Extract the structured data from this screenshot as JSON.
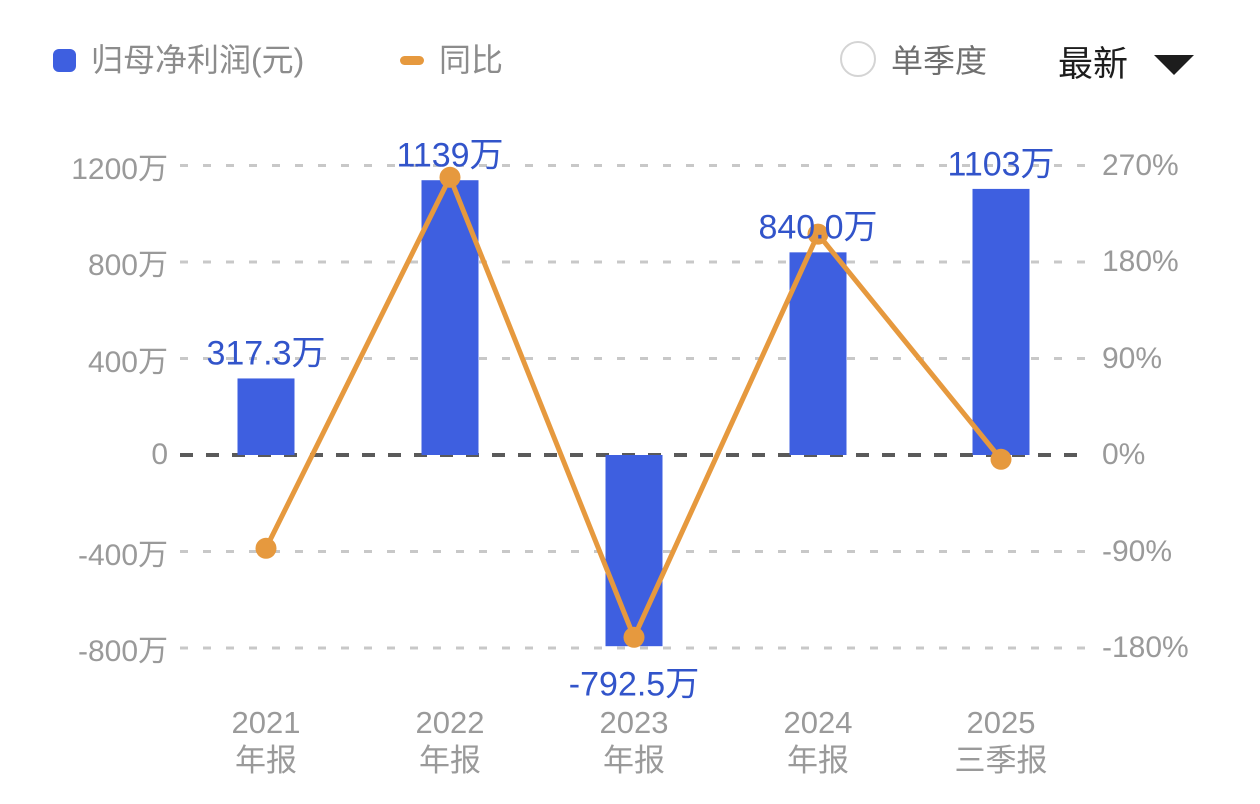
{
  "header": {
    "legend": [
      {
        "label": "归母净利润(元)",
        "marker": "square-icon",
        "color": "#3E5FE0"
      },
      {
        "label": "同比",
        "marker": "dash-icon",
        "color": "#E6993E"
      }
    ],
    "controls": {
      "radio_label": "单季度",
      "radio_checked": false,
      "selector_label": "最新",
      "dropdown_icon": "triangle-down"
    }
  },
  "chart_data": {
    "type": "bar",
    "subtype": "bar+line dual axis",
    "categories": [
      {
        "line1": "2021",
        "line2": "年报"
      },
      {
        "line1": "2022",
        "line2": "年报"
      },
      {
        "line1": "2023",
        "line2": "年报"
      },
      {
        "line1": "2024",
        "line2": "年报"
      },
      {
        "line1": "2025",
        "line2": "三季报"
      }
    ],
    "series": [
      {
        "name": "归母净利润(元)",
        "type": "bar",
        "axis": "left",
        "unit": "万",
        "values": [
          317.3,
          1139,
          -792.5,
          840.0,
          1103
        ],
        "labels": [
          "317.3万",
          "1139万",
          "-792.5万",
          "840.0万",
          "1103万"
        ],
        "color": "#3E5FE0"
      },
      {
        "name": "同比",
        "type": "line",
        "axis": "right",
        "unit": "%",
        "values": [
          -87,
          259,
          -170,
          206,
          -4
        ],
        "color": "#E6993E"
      }
    ],
    "left_axis": {
      "ticks": [
        "1200万",
        "800万",
        "400万",
        "0",
        "-400万",
        "-800万"
      ],
      "values": [
        1200,
        800,
        400,
        0,
        -400,
        -800
      ],
      "range": [
        -800,
        1200
      ]
    },
    "right_axis": {
      "ticks": [
        "270%",
        "180%",
        "90%",
        "0%",
        "-90%",
        "-180%"
      ],
      "values": [
        270,
        180,
        90,
        0,
        -90,
        -180
      ],
      "range": [
        -180,
        270
      ]
    },
    "grid": "horizontal dashed, zero line emphasized",
    "legend_position": "top-left"
  },
  "colors": {
    "bar": "#3E5FE0",
    "line": "#E6993E",
    "data_label": "#3254CA",
    "axis_text": "#9a9a9a",
    "gridline": "#c8c8c8",
    "zero_line": "#5a5a5a",
    "legend_text": "#8c8c8c",
    "background": "#ffffff"
  }
}
